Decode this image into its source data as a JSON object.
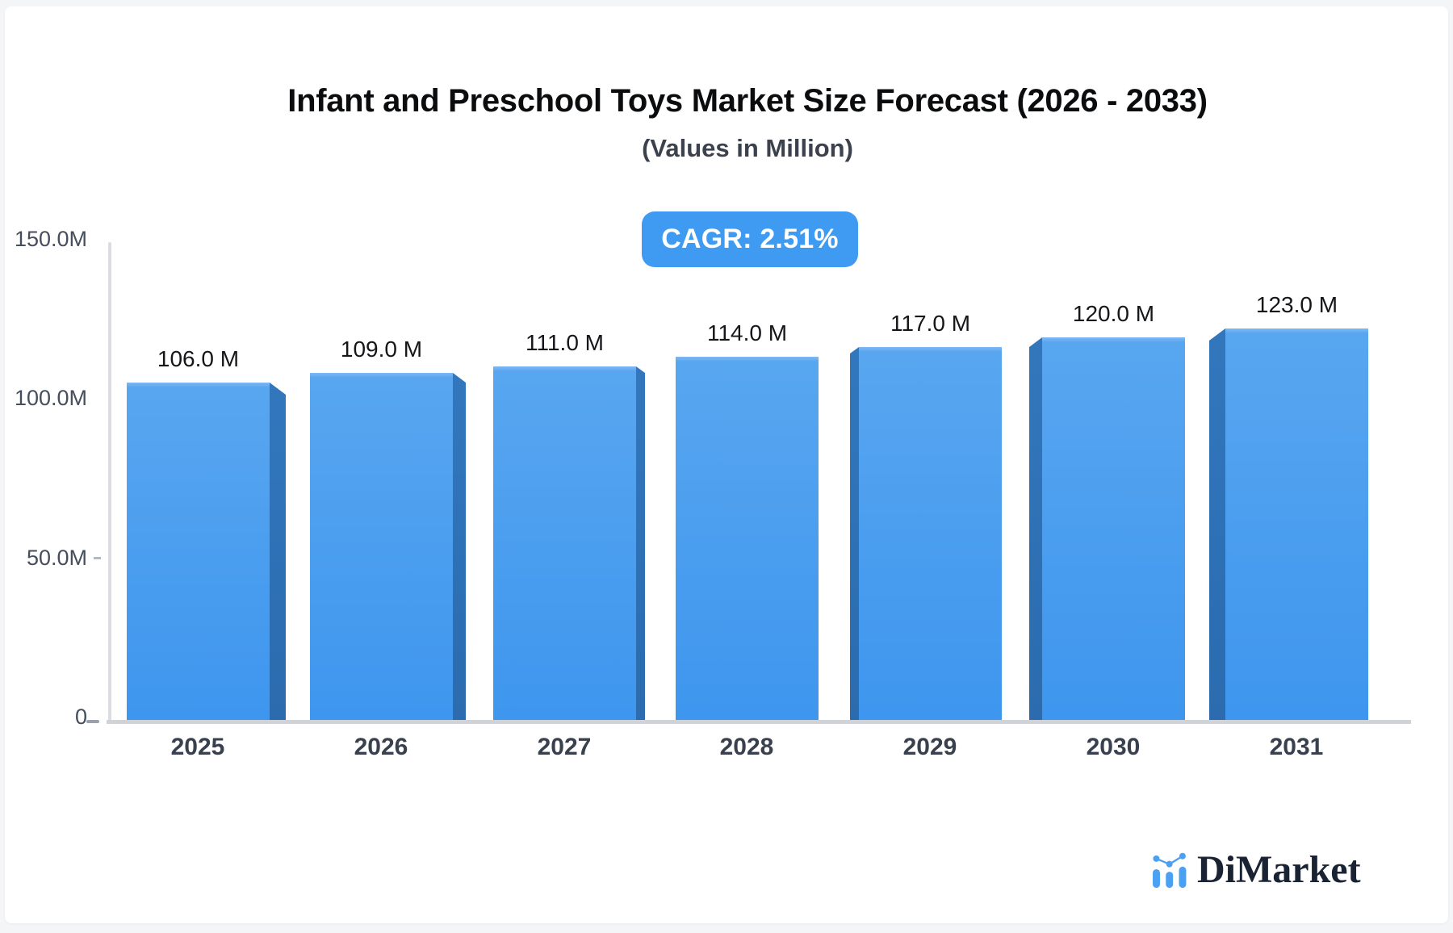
{
  "page": {
    "title": "Infant and Preschool Toys Market Size Forecast (2026 - 2033)",
    "subtitle": "(Values in Million)",
    "cagr_badge": "CAGR: 2.51%"
  },
  "brand": {
    "name": "DiMarket",
    "icon": "bar-chart-dots-logo-icon"
  },
  "chart_data": {
    "type": "bar",
    "title": "Infant and Preschool Toys Market Size Forecast (2026 - 2033)",
    "subtitle": "(Values in Million)",
    "cagr_label": "CAGR: 2.51%",
    "unit": "Million",
    "categories": [
      "2025",
      "2026",
      "2027",
      "2028",
      "2029",
      "2030",
      "2031"
    ],
    "values": [
      106,
      109,
      111,
      114,
      117,
      120,
      123
    ],
    "value_labels": [
      "106.0 M",
      "109.0 M",
      "111.0 M",
      "114.0 M",
      "117.0 M",
      "120.0 M",
      "123.0 M"
    ],
    "ylim": [
      0,
      150
    ],
    "yticks": [
      {
        "value": 150,
        "label": "150.0M"
      },
      {
        "value": 100,
        "label": "100.0M"
      },
      {
        "value": 50,
        "label": "50.0M"
      },
      {
        "value": 0,
        "label": "0"
      }
    ],
    "grid": "off",
    "legend": "none",
    "bar_style": "3d-extruded-toward-center",
    "colors": {
      "bar_face_highlight": "#7fb8f4",
      "bar_face_top": "#58a6f0",
      "bar_face_bottom": "#3e96ee",
      "bar_side_top": "#3277bd",
      "bar_side_bottom": "#2b6bae",
      "badge_bg": "#3f9bf2",
      "brand_blue": "#4aa0f2",
      "brand_navy": "#1a2334",
      "axis_line": "#dbdde1",
      "baseline": "#cfd3d8",
      "title_text": "#0b0c0e",
      "label_text": "#39414f"
    }
  }
}
